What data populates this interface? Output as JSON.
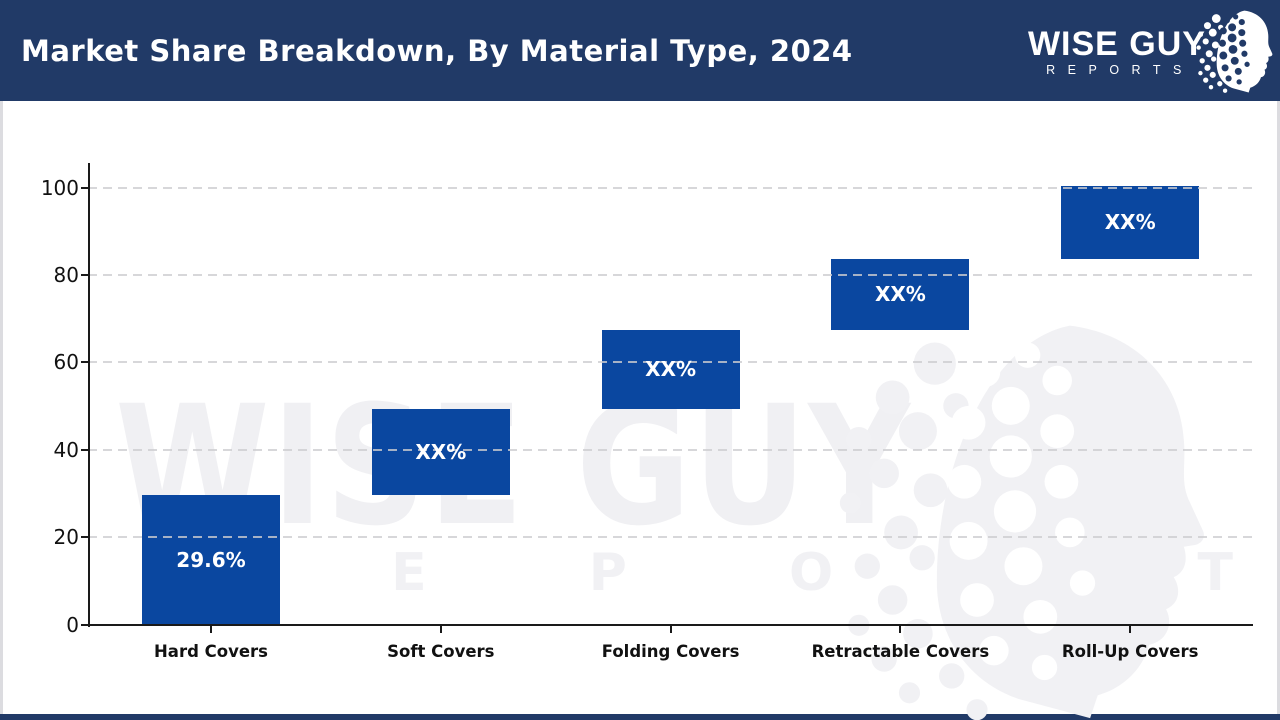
{
  "header": {
    "title": "Market Share Breakdown, By Material Type, 2024",
    "logo": {
      "line1": "WISE GUY",
      "line2": "REPORTS",
      "icon": "wiseguy-head-icon"
    }
  },
  "watermark": {
    "line1": "WISE GUY",
    "line2": "R E P O R T S",
    "icon": "wiseguy-head-icon"
  },
  "colors": {
    "navy": "#213a67",
    "bar_blue": "#0a47a0",
    "grid_gray": "#dcdcdc",
    "axis_black": "#1a1a1a",
    "watermark_gray": "#f0f0f3",
    "bar_label_white": "#ffffff"
  },
  "chart_data": {
    "type": "bar",
    "subtype": "waterfall",
    "title": "Market Share Breakdown, By Material Type, 2024",
    "xlabel": "",
    "ylabel": "",
    "categories": [
      "Hard Covers",
      "Soft Covers",
      "Folding Covers",
      "Retractable Covers",
      "Roll-Up Covers"
    ],
    "segments": [
      {
        "start": 0,
        "end": 29.6,
        "label": "29.6%"
      },
      {
        "start": 29.6,
        "end": 49.4,
        "label": "XX%"
      },
      {
        "start": 49.4,
        "end": 67.5,
        "label": "XX%"
      },
      {
        "start": 67.5,
        "end": 83.7,
        "label": "XX%"
      },
      {
        "start": 83.7,
        "end": 100.4,
        "label": "XX%"
      }
    ],
    "yticks": [
      0,
      20,
      40,
      60,
      80,
      100
    ],
    "ylim": [
      0,
      106
    ],
    "grid": "horizontal-dashed",
    "legend": "none",
    "bar_color": "#0a47a0"
  }
}
